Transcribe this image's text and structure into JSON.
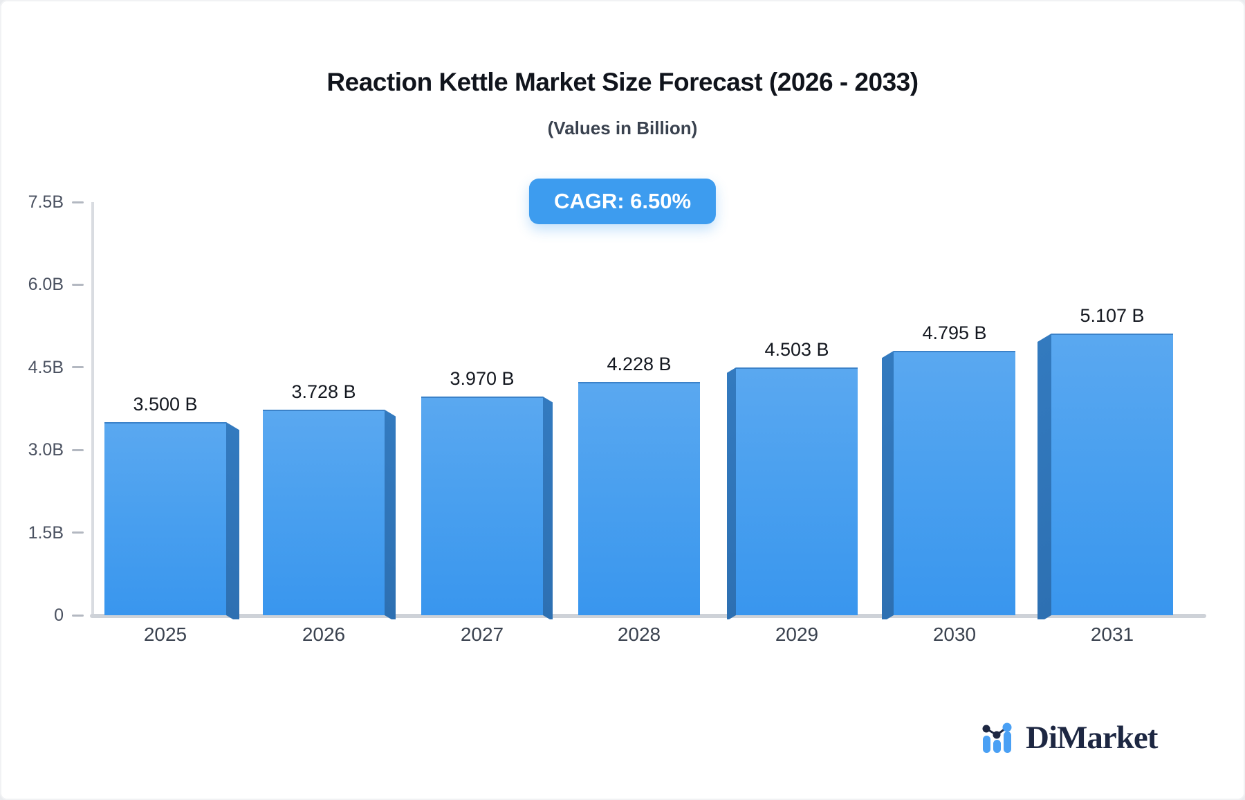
{
  "chart_data": {
    "type": "bar",
    "title": "Reaction Kettle Market Size Forecast (2026 - 2033)",
    "subtitle": "(Values in Billion)",
    "badge": "CAGR: 6.50%",
    "categories": [
      "2025",
      "2026",
      "2027",
      "2028",
      "2029",
      "2030",
      "2031"
    ],
    "values": [
      3.5,
      3.728,
      3.97,
      4.228,
      4.503,
      4.795,
      5.107
    ],
    "value_labels": [
      "3.500 B",
      "3.728 B",
      "3.970 B",
      "4.228 B",
      "4.503 B",
      "4.795 B",
      "5.107 B"
    ],
    "y_axis": {
      "ticks": [
        {
          "label": "7.5B",
          "value": 7.5
        },
        {
          "label": "6.0B",
          "value": 6.0
        },
        {
          "label": "4.5B",
          "value": 4.5
        },
        {
          "label": "3.0B",
          "value": 3.0
        },
        {
          "label": "1.5B",
          "value": 1.5
        },
        {
          "label": "0",
          "value": 0
        }
      ],
      "range": [
        0,
        7.5
      ]
    },
    "grid": false,
    "legend": false,
    "bar_style": "3d-perspective-toward-center",
    "colors": {
      "bar_top": "#5aa8f0",
      "bar_bottom": "#3996ee",
      "bar_side": "#2f74b8",
      "bar_top_edge": "#3b82c9",
      "badge_bg": "#3d9cef",
      "axis": "#d9dce1",
      "tick_mark": "#b3b8c1",
      "baseline": "#ced2d8",
      "title_color": "#10141c",
      "brand_color": "#1d2742",
      "logo_blue": "#4aa0f4"
    }
  },
  "footer": {
    "brand": "DiMarket",
    "logo_icon": "bar-line-chart-icon"
  }
}
